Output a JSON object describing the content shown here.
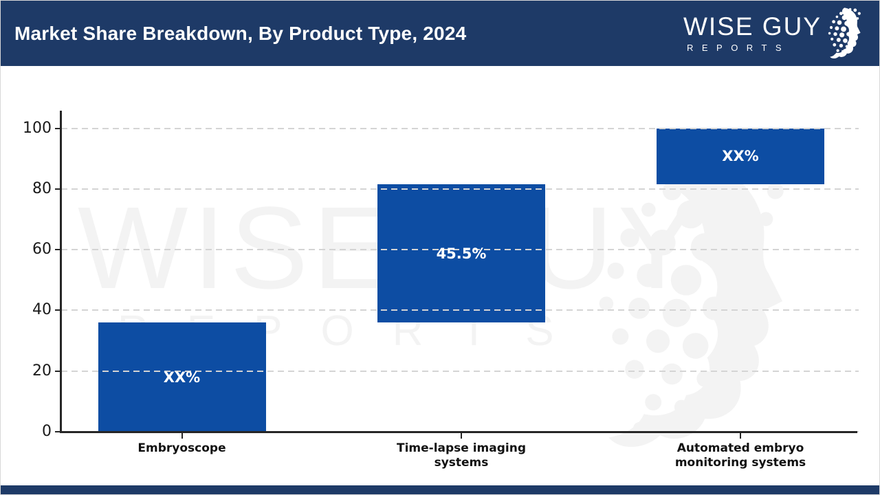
{
  "header": {
    "title": "Market Share Breakdown, By Product Type, 2024"
  },
  "brand": {
    "line1": "WISE GUY",
    "line2": "REPORTS"
  },
  "colors": {
    "header_bg": "#1e3a67",
    "footer_bg": "#1e3a67",
    "bar": "#0d4da3",
    "bar_label": "#ffffff",
    "axis": "#262626",
    "grid": "#d4d4d4",
    "watermark": "#f3f3f3"
  },
  "chart_data": {
    "type": "bar",
    "subtype": "floating-segment-bars",
    "title": "Market Share Breakdown, By Product Type, 2024",
    "categories": [
      "Embryoscope",
      "Time-lapse imaging systems",
      "Automated embryo monitoring systems"
    ],
    "category_label_lines": [
      [
        "Embryoscope"
      ],
      [
        "Time-lapse imaging",
        "systems"
      ],
      [
        "Automated embryo",
        "monitoring systems"
      ]
    ],
    "segment_ranges": [
      [
        0,
        36
      ],
      [
        36,
        81.5
      ],
      [
        81.5,
        100
      ]
    ],
    "values": [
      36,
      45.5,
      18.5
    ],
    "bar_labels": [
      "XX%",
      "45.5%",
      "XX%"
    ],
    "xlabel": "",
    "ylabel": "",
    "ylim": [
      0,
      100
    ],
    "yticks": [
      0,
      20,
      40,
      60,
      80,
      100
    ],
    "grid": "dashed horizontal gridlines",
    "legend": "none"
  }
}
